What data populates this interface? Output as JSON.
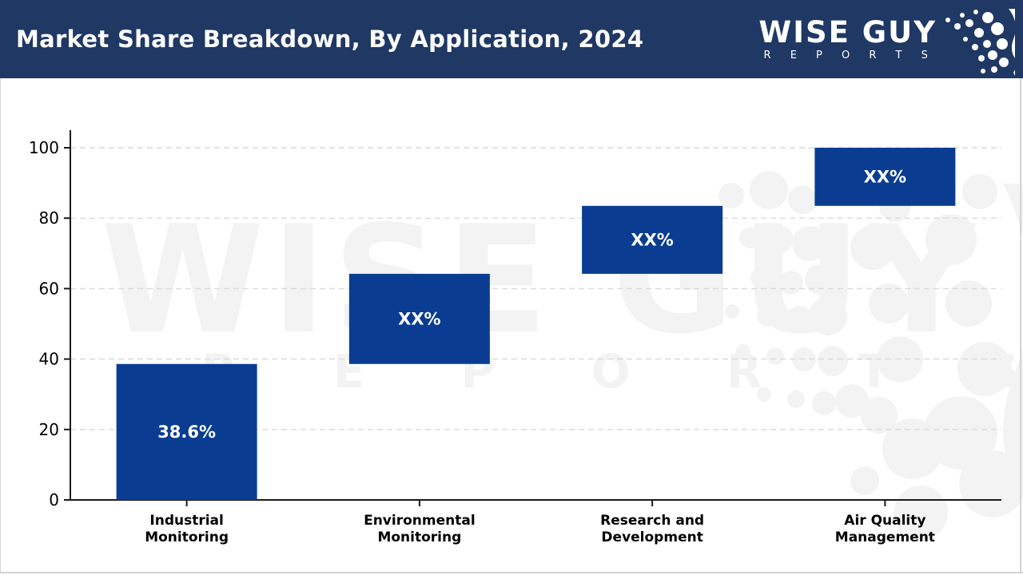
{
  "header": {
    "title": "Market Share Breakdown, By Application, 2024",
    "logo": {
      "line1": "WISE GUY",
      "line2": "R E P O R T S"
    }
  },
  "watermark": {
    "line1": "WISE GUY",
    "line2": "R E P O R T S"
  },
  "colors": {
    "header_bg": "#1f3864",
    "bar": "#0a3d91",
    "bar_label": "#ffffff",
    "gridline": "#d9d9d9",
    "axis": "#1a1a1a",
    "tick_label": "#000000",
    "watermark": "#f3f3f3"
  },
  "chart_data": {
    "type": "bar",
    "subtype": "waterfall",
    "title": "Market Share Breakdown, By Application, 2024",
    "categories": [
      "Industrial Monitoring",
      "Environmental Monitoring",
      "Research and Development",
      "Air Quality Management"
    ],
    "category_label_lines": [
      [
        "Industrial",
        "Monitoring"
      ],
      [
        "Environmental",
        "Monitoring"
      ],
      [
        "Research and",
        "Development"
      ],
      [
        "Air Quality",
        "Management"
      ]
    ],
    "segments": [
      {
        "start": 0,
        "end": 38.6
      },
      {
        "start": 38.6,
        "end": 64.2
      },
      {
        "start": 64.2,
        "end": 83.5
      },
      {
        "start": 83.5,
        "end": 100
      }
    ],
    "values": [
      38.6,
      25.6,
      19.3,
      16.5
    ],
    "bar_labels": [
      "38.6%",
      "XX%",
      "XX%",
      "XX%"
    ],
    "xlabel": "",
    "ylabel": "",
    "yticks": [
      0,
      20,
      40,
      60,
      80,
      100
    ],
    "ylim": [
      0,
      105
    ],
    "grid": "horizontal-dashed",
    "legend": "none"
  }
}
